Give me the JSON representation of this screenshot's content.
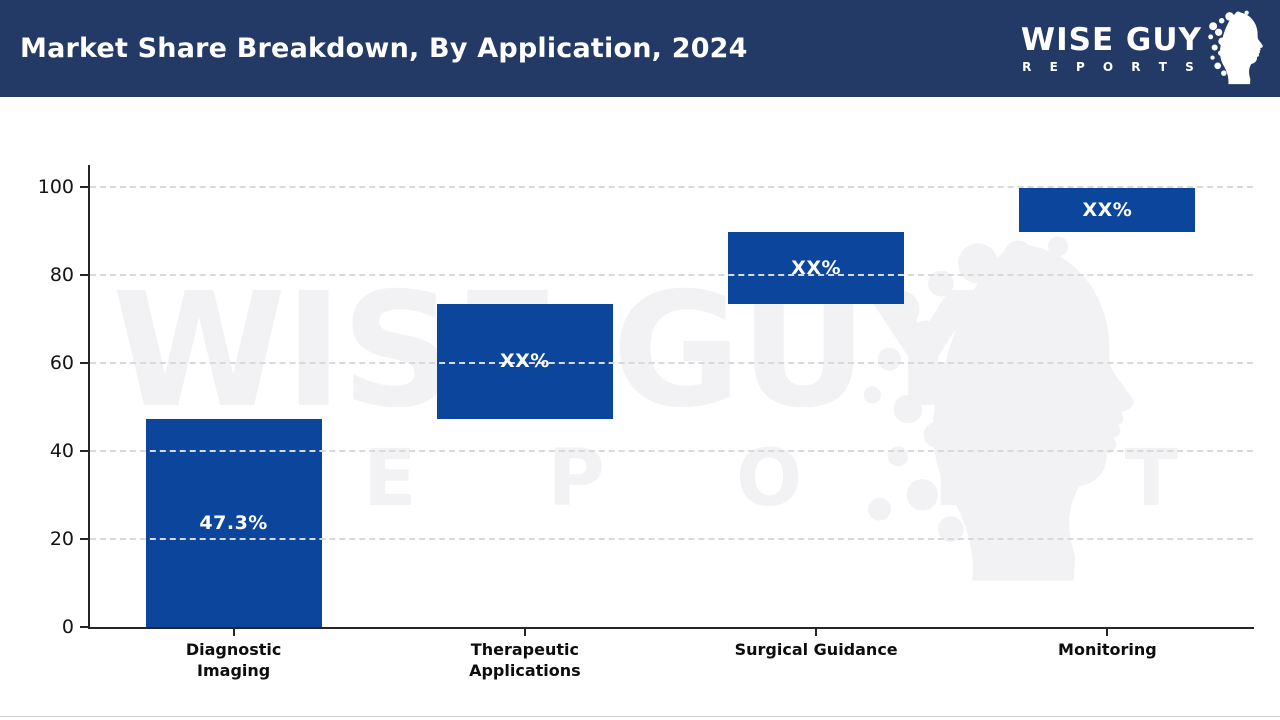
{
  "header": {
    "title": "Market Share Breakdown, By Application, 2024",
    "logo_line1": "WISE GUY",
    "logo_line2": "R E P O R T S"
  },
  "watermark": {
    "line1": "WISE GUY",
    "line2": "R E P O R T S"
  },
  "chart_data": {
    "type": "bar",
    "variant": "waterfall",
    "title": "Market Share Breakdown, By Application, 2024",
    "categories": [
      "Diagnostic Imaging",
      "Therapeutic Applications",
      "Surgical Guidance",
      "Monitoring"
    ],
    "bars": [
      {
        "category": "Diagnostic Imaging",
        "start": 0,
        "end": 47.3,
        "value_label": "47.3%"
      },
      {
        "category": "Therapeutic Applications",
        "start": 47.3,
        "end": 73.4,
        "value_label": "XX%"
      },
      {
        "category": "Surgical Guidance",
        "start": 73.4,
        "end": 89.8,
        "value_label": "XX%"
      },
      {
        "category": "Monitoring",
        "start": 89.8,
        "end": 99.8,
        "value_label": "XX%"
      }
    ],
    "y_ticks": [
      0,
      20,
      40,
      60,
      80,
      100
    ],
    "ylim": [
      0,
      105
    ],
    "xlabel": "",
    "ylabel": "",
    "grid": "horizontal-dashed",
    "legend": "none",
    "bar_color": "#0c459c",
    "bar_label_color": "#ffffff"
  },
  "colors": {
    "header_bg": "#233a66",
    "bar": "#0c459c",
    "grid": "#d9d9d9",
    "axis": "#262626",
    "watermark": "#f2f2f4"
  }
}
